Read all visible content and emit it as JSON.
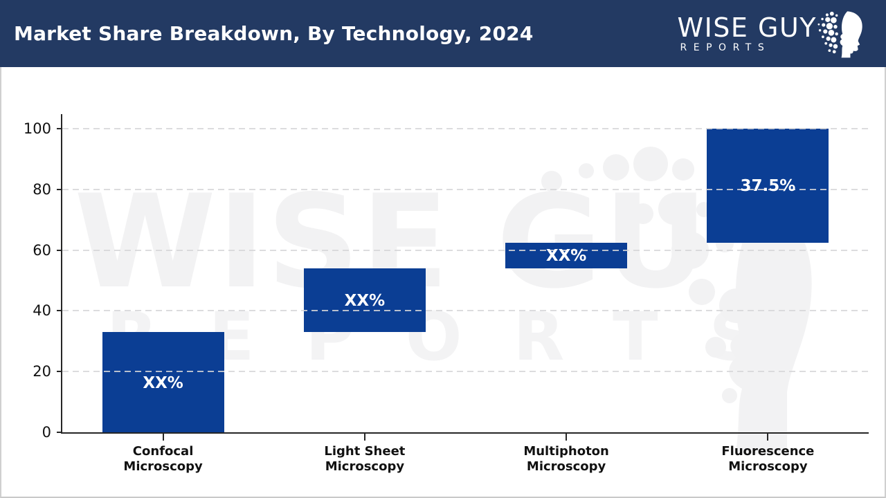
{
  "header": {
    "logo": {
      "line1": "WISE GUY",
      "line2": "REPORTS"
    }
  },
  "watermark": {
    "line1": "WISE GUY",
    "line2": "REPORTS"
  },
  "chart_data": {
    "type": "bar",
    "subtype": "waterfall",
    "title": "Market Share Breakdown, By Technology, 2024",
    "categories": [
      "Confocal Microscopy",
      "Light Sheet Microscopy",
      "Multiphoton Microscopy",
      "Fluorescence Microscopy"
    ],
    "bars": [
      {
        "category": "Confocal Microscopy",
        "category_lines": [
          "Confocal",
          "Microscopy"
        ],
        "start": 0,
        "end": 33,
        "value": 33,
        "label": "XX%"
      },
      {
        "category": "Light Sheet Microscopy",
        "category_lines": [
          "Light Sheet",
          "Microscopy"
        ],
        "start": 33,
        "end": 54,
        "value": 21,
        "label": "XX%"
      },
      {
        "category": "Multiphoton Microscopy",
        "category_lines": [
          "Multiphoton",
          "Microscopy"
        ],
        "start": 54,
        "end": 62.5,
        "value": 8.5,
        "label": "XX%"
      },
      {
        "category": "Fluorescence Microscopy",
        "category_lines": [
          "Fluorescence",
          "Microscopy"
        ],
        "start": 62.5,
        "end": 100,
        "value": 37.5,
        "label": "37.5%"
      }
    ],
    "yticks": [
      0,
      20,
      40,
      60,
      80,
      100
    ],
    "ylim": [
      0,
      100
    ],
    "grid": true,
    "legend": "none",
    "bar_color": "#0b3e94",
    "axis_color": "#262626",
    "gridline_color": "#d6d6d8",
    "header_color": "#233a63",
    "label_color": "#ffffff"
  }
}
